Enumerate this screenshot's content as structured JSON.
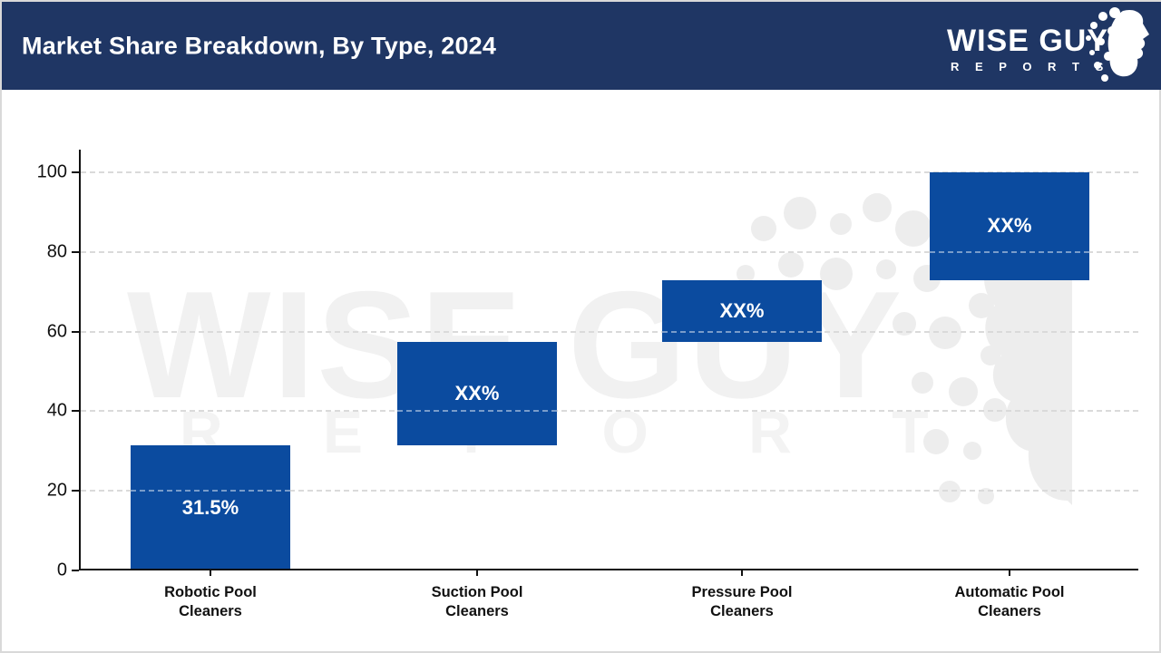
{
  "header": {
    "title": "Market Share Breakdown, By Type, 2024",
    "logo": {
      "name_line": "WISE GUY",
      "sub_line": "R E P O R T S"
    }
  },
  "watermark": {
    "name_line": "WISE GUY",
    "sub_line": "R E P O R T S"
  },
  "chart_data": {
    "type": "bar",
    "subtype": "waterfall-floating-segments",
    "title": "Market Share Breakdown, By Type, 2024",
    "categories": [
      "Robotic Pool Cleaners",
      "Suction Pool Cleaners",
      "Pressure Pool Cleaners",
      "Automatic Pool Cleaners"
    ],
    "segments": [
      {
        "category": "Robotic Pool Cleaners",
        "start": 0,
        "end": 31.5,
        "label": "31.5%"
      },
      {
        "category": "Suction Pool Cleaners",
        "start": 31.5,
        "end": 57.3,
        "label": "XX%"
      },
      {
        "category": "Pressure Pool Cleaners",
        "start": 57.3,
        "end": 73,
        "label": "XX%"
      },
      {
        "category": "Automatic Pool Cleaners",
        "start": 73,
        "end": 100,
        "label": "XX%"
      }
    ],
    "ylim": [
      0,
      100
    ],
    "yticks": [
      0,
      20,
      40,
      60,
      80,
      100
    ],
    "xlabel": "",
    "ylabel": "",
    "grid": "horizontal-dashed",
    "legend": null,
    "bar_color": "#0B4B9F",
    "bar_label_color": "#FFFFFF"
  },
  "colors": {
    "header_bg": "#1F3664",
    "bar": "#0B4B9F",
    "axis": "#111111",
    "gridline": "#DADADA",
    "watermark": "#F1F1F1",
    "frame_border": "#D9D9D9"
  }
}
